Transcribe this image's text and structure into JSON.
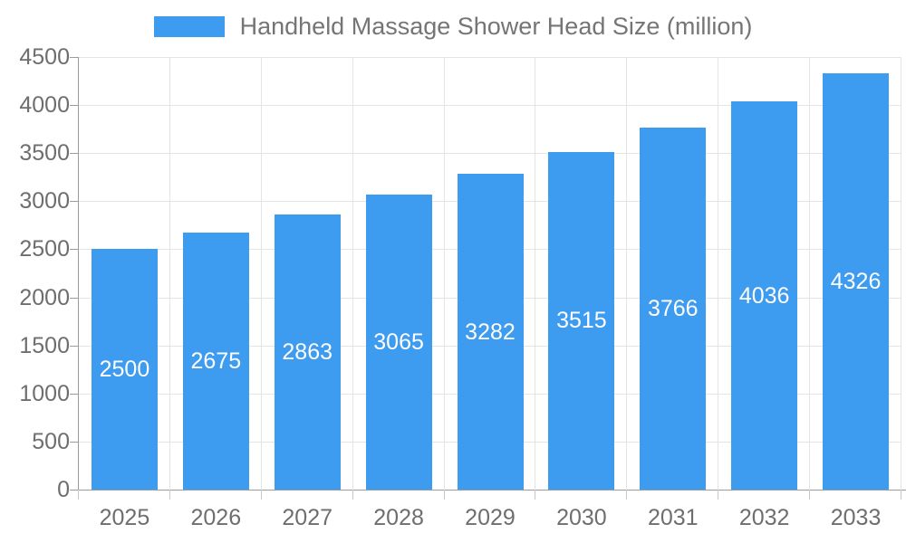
{
  "legend": {
    "label": "Handheld Massage Shower Head Size (million)"
  },
  "colors": {
    "bar": "#3D9BF0",
    "grid": "#E4E4E4",
    "axis_line": "#9B9B9B",
    "x_tick": "#C9C9C9",
    "axis_text": "#6E6E6E",
    "legend_text": "#757575",
    "bar_label_text": "#FFFFFF",
    "background": "#FFFFFF"
  },
  "chart_data": {
    "type": "bar",
    "series_name": "Handheld Massage Shower Head Size (million)",
    "categories": [
      "2025",
      "2026",
      "2027",
      "2028",
      "2029",
      "2030",
      "2031",
      "2032",
      "2033"
    ],
    "values": [
      2500,
      2675,
      2863,
      3065,
      3282,
      3515,
      3766,
      4036,
      4326
    ],
    "bar_value_labels": [
      "2500",
      "2675",
      "2863",
      "3065",
      "3282",
      "3515",
      "3766",
      "4036",
      "4326"
    ],
    "title": "",
    "xlabel": "",
    "ylabel": "",
    "ylim": [
      0,
      4500
    ],
    "yticks": [
      0,
      500,
      1000,
      1500,
      2000,
      2500,
      3000,
      3500,
      4000,
      4500
    ],
    "grid": true,
    "gridlines": "horizontal-and-vertical",
    "legend_position": "top-center",
    "value_label_position": "inside-center"
  }
}
